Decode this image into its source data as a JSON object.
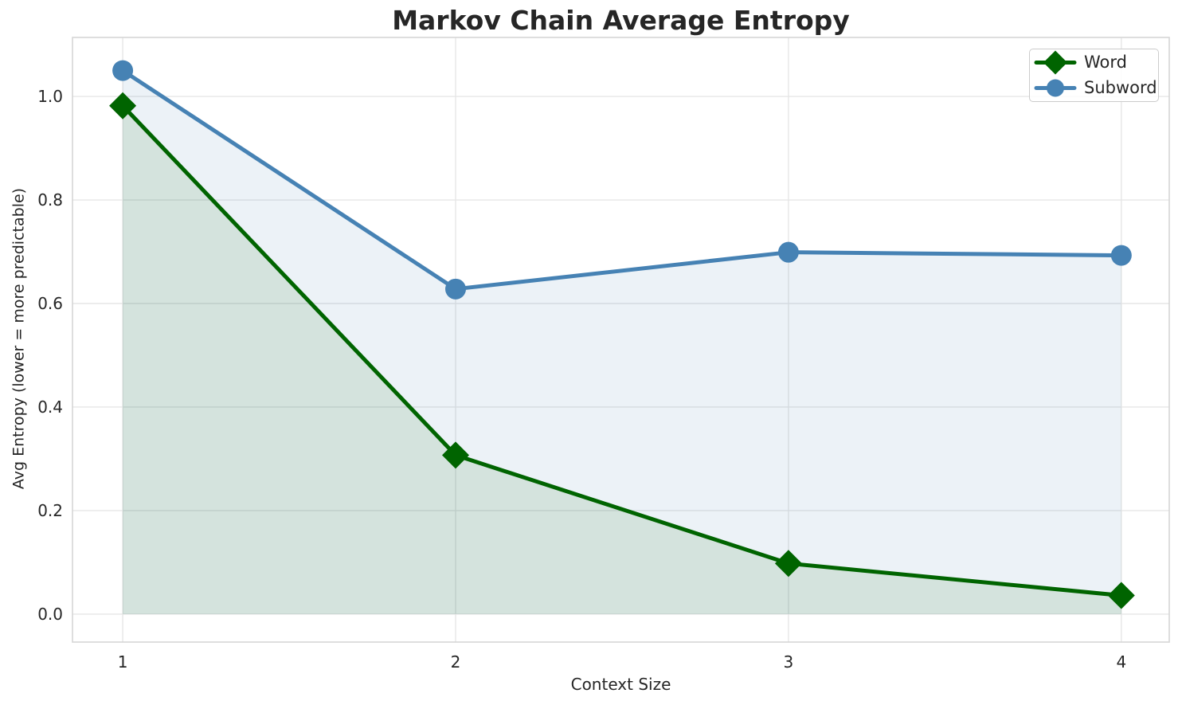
{
  "chart_data": {
    "type": "line",
    "title": "Markov Chain Average Entropy",
    "xlabel": "Context Size",
    "ylabel": "Avg Entropy (lower = more predictable)",
    "x": [
      1,
      2,
      3,
      4
    ],
    "xtick_labels": [
      "1",
      "2",
      "3",
      "4"
    ],
    "yticks": [
      0.0,
      0.2,
      0.4,
      0.6,
      0.8,
      1.0
    ],
    "ytick_labels": [
      "0.0",
      "0.2",
      "0.4",
      "0.6",
      "0.8",
      "1.0"
    ],
    "xlim": [
      0.849,
      4.144
    ],
    "ylim": [
      -0.054,
      1.114
    ],
    "grid": true,
    "legend_position": "upper right",
    "fill_baseline": 0.0,
    "series": [
      {
        "name": "Word",
        "marker": "diamond",
        "color": "#006400",
        "fill_alpha": 0.1,
        "values": [
          0.982,
          0.307,
          0.098,
          0.036
        ]
      },
      {
        "name": "Subword",
        "marker": "circle",
        "color": "#4682b4",
        "fill_alpha": 0.1,
        "values": [
          1.05,
          0.628,
          0.699,
          0.693
        ]
      }
    ]
  },
  "colors": {
    "background": "#ffffff",
    "title_text": "#262626",
    "axis_text": "#262626",
    "tick_text": "#262626",
    "grid": "#e6e6e6",
    "spine": "#d6d6d6",
    "legend_border": "#cccccc",
    "word_green": "#006400",
    "subword_blue": "#4682b4"
  }
}
